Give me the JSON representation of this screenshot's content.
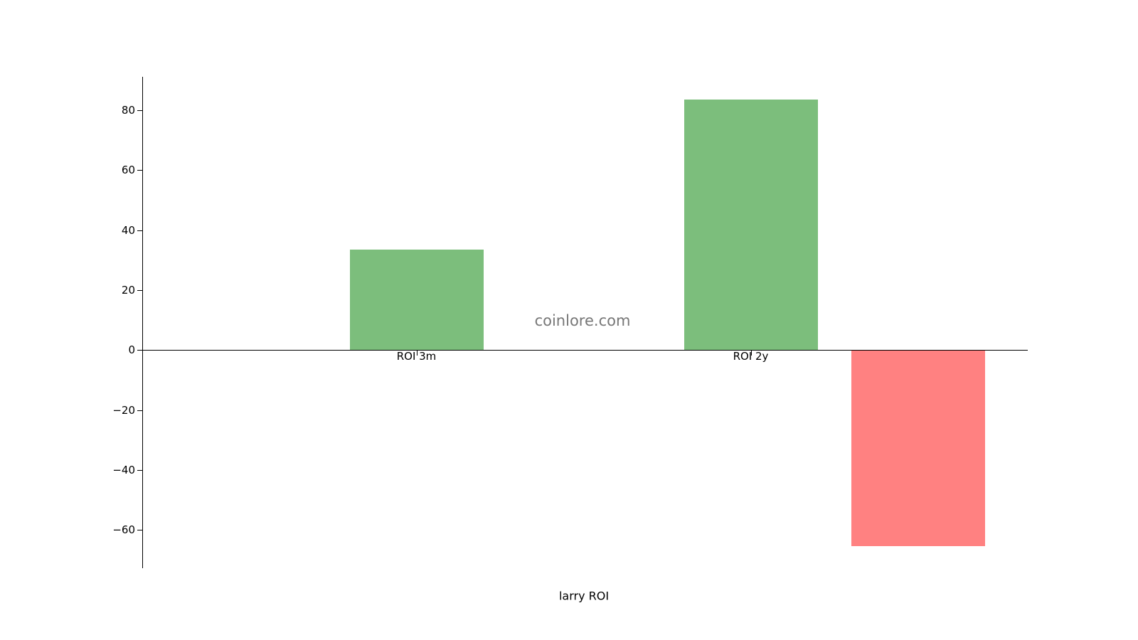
{
  "chart_data": {
    "type": "bar",
    "title": "",
    "xlabel": "larry ROI",
    "ylabel": "",
    "watermark": "coinlore.com",
    "grid": false,
    "legend_position": "none",
    "ylim": [
      -72.8,
      91.2
    ],
    "categories": [
      "ROI 3m",
      "ROI 2y",
      ""
    ],
    "values": [
      33.6,
      83.6,
      -65.5
    ],
    "bars": [
      {
        "category": "ROI 3m",
        "value": 33.6,
        "color": "#7cbe7c",
        "label_visible": true
      },
      {
        "category": "ROI 2y",
        "value": 83.6,
        "color": "#7cbe7c",
        "label_visible": true
      },
      {
        "category": "",
        "value": -65.5,
        "color": "#ff8181",
        "label_visible": false
      }
    ],
    "y_ticks": [
      {
        "value": 80,
        "label": "80"
      },
      {
        "value": 60,
        "label": "60"
      },
      {
        "value": 40,
        "label": "40"
      },
      {
        "value": 20,
        "label": "20"
      },
      {
        "value": 0,
        "label": "0"
      },
      {
        "value": -20,
        "label": "−20"
      },
      {
        "value": -40,
        "label": "−40"
      },
      {
        "value": -60,
        "label": "−60"
      }
    ],
    "colors": {
      "positive": "#7cbe7c",
      "negative": "#ff8181",
      "axis": "#000000",
      "text": "#000000",
      "watermark": "#777777",
      "background": "#ffffff"
    }
  }
}
